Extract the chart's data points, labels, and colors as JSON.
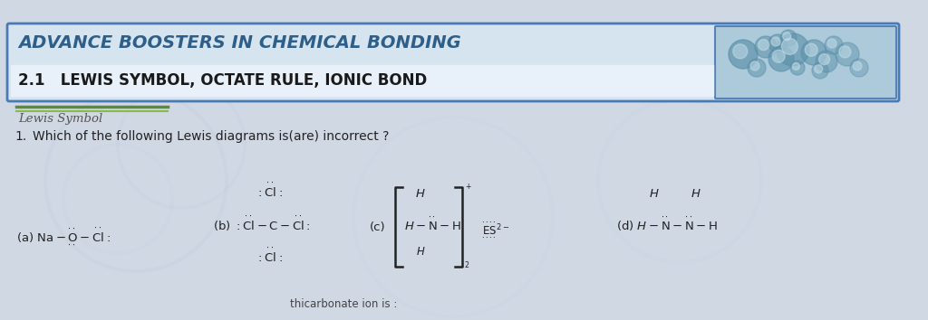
{
  "header_text1": "ADVANCE BOOSTERS IN CHEMICAL BONDING",
  "header_text2": "2.1   LEWIS SYMBOL, OCTATE RULE, IONIC BOND",
  "section_label": "Lewis Symbol",
  "question_number": "1.",
  "question_text": "Which of the following Lewis diagrams is(are) incorrect ?",
  "footer_text": "thicarbonate ion is :",
  "header_bg": "#d6e4f0",
  "header_border": "#4a7ab5",
  "header_text1_color": "#2e5f8a",
  "header_text2_color": "#1a1a1a",
  "strip_color": "#eaf2fa",
  "page_bg": "#d0d8e4",
  "watermark_color": "#b0c8d8",
  "section_color": "#555555",
  "text_color": "#222222",
  "green_line1": "#5a8a3a",
  "green_line2": "#88bb44",
  "img_bg": "#a8c8d8"
}
